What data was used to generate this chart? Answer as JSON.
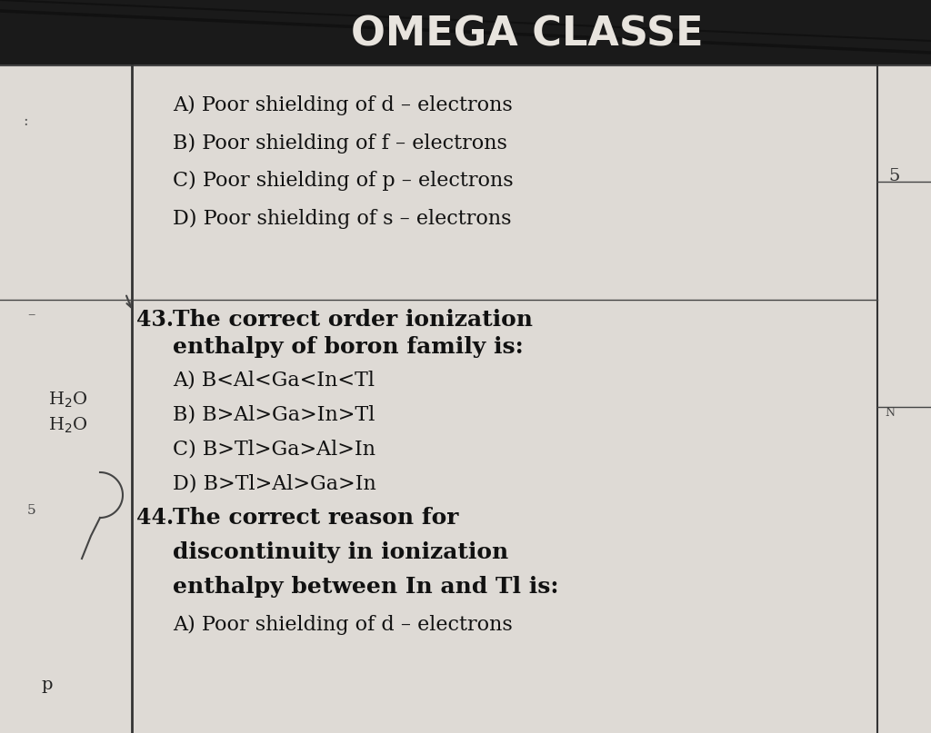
{
  "bg_outer": "#c8c4bf",
  "bg_page": "#dedad5",
  "bg_header": "#1a1a1a",
  "header_text": "OMEGA CLASSE",
  "header_color": "#e8e4de",
  "q42_options": [
    "A) Poor shielding of d – electrons",
    "B) Poor shielding of f – electrons",
    "C) Poor shielding of p – electrons",
    "D) Poor shielding of s – electrons"
  ],
  "q43_num": "43.",
  "q43_bold_lines": [
    "The correct order ionization",
    "enthalpy of boron family is:"
  ],
  "q43_options": [
    "A) B<Al<Ga<In<Tl",
    "B) B>Al>Ga>In>Tl",
    "C) B>Tl>Ga>Al>In",
    "D) B>Tl>Al>Ga>In"
  ],
  "q44_num": "44.",
  "q44_bold_lines": [
    "The correct reason for",
    "discontinuity in ionization",
    "enthalpy between In and Tl is:"
  ],
  "q44_option_a": "A) Poor shielding of d – electrons",
  "left_annot_h2o_1": "H₂O",
  "left_annot_h2o_2": "H₂O",
  "left_annot_small": "5",
  "left_annot_p": "p",
  "right_annot_5": "5",
  "fs_header": 32,
  "fs_option": 16,
  "fs_bold": 18,
  "fs_num": 17,
  "fs_annot": 14
}
